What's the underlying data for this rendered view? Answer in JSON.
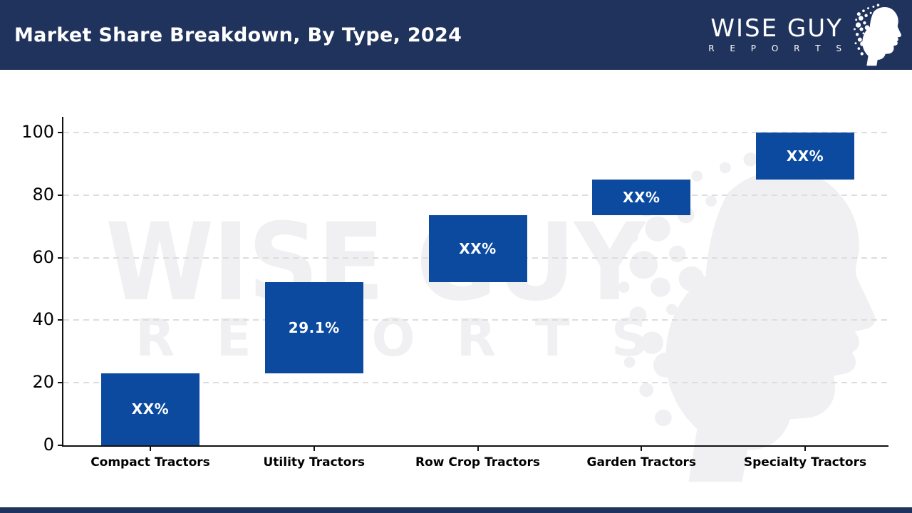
{
  "header": {
    "title": "Market Share Breakdown, By Type, 2024",
    "logo": {
      "word": "WISE GUY",
      "sub": "R E P O R T S"
    }
  },
  "watermark": {
    "line1": "WISE GUY",
    "line2": "REPORTS"
  },
  "chart_data": {
    "type": "bar",
    "subtype": "waterfall-floating-bars",
    "title": "Market Share Breakdown, By Type, 2024",
    "categories": [
      "Compact Tractors",
      "Utility Tractors",
      "Row Crop Tractors",
      "Garden Tractors",
      "Specialty Tractors"
    ],
    "segments": [
      {
        "category": "Compact Tractors",
        "start": 0,
        "end": 23.1,
        "label": "XX%"
      },
      {
        "category": "Utility Tractors",
        "start": 23.1,
        "end": 52.2,
        "label": "29.1%"
      },
      {
        "category": "Row Crop Tractors",
        "start": 52.2,
        "end": 73.6,
        "label": "XX%"
      },
      {
        "category": "Garden Tractors",
        "start": 73.6,
        "end": 84.9,
        "label": "XX%"
      },
      {
        "category": "Specialty Tractors",
        "start": 84.9,
        "end": 100,
        "label": "XX%"
      }
    ],
    "values": [
      23.1,
      29.1,
      21.4,
      11.3,
      15.1
    ],
    "xlabel": "",
    "ylabel": "",
    "yticks": [
      0,
      20,
      40,
      60,
      80,
      100
    ],
    "ylim": [
      0,
      105
    ],
    "grid": "horizontal-dashed",
    "legend": "none",
    "colors": {
      "bar": "#0b4a9f",
      "bar_label": "#ffffff",
      "header_bg": "#20335c",
      "gridline": "#dddddd",
      "axis": "#111111",
      "watermark": "#f0f0f2"
    }
  }
}
